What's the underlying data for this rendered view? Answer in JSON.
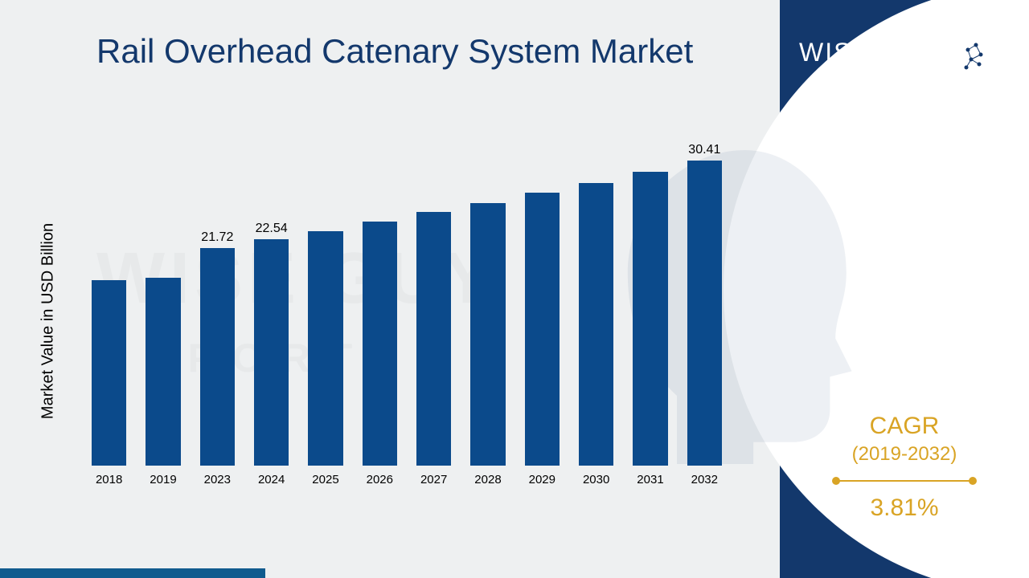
{
  "title": {
    "text": "Rail Overhead Catenary System Market",
    "color": "#13386c",
    "fontsize": 42
  },
  "logo": {
    "brand": "WISE GUY",
    "sub": "REPORTS",
    "text_color": "#ffffff"
  },
  "chart": {
    "type": "bar",
    "ylabel": "Market Value in USD Billion",
    "ylabel_fontsize": 20,
    "categories": [
      "2018",
      "2019",
      "2023",
      "2024",
      "2025",
      "2026",
      "2027",
      "2028",
      "2029",
      "2030",
      "2031",
      "2032"
    ],
    "values": [
      18.5,
      18.7,
      21.72,
      22.54,
      23.4,
      24.3,
      25.3,
      26.2,
      27.2,
      28.2,
      29.3,
      30.41
    ],
    "value_labels": [
      "",
      "",
      "21.72",
      "22.54",
      "",
      "",
      "",
      "",
      "",
      "",
      "",
      "30.41"
    ],
    "bar_color": "#0b4a8b",
    "bar_width_ratio": 0.64,
    "y_max": 32,
    "category_fontsize": 15,
    "value_label_fontsize": 16,
    "value_label_color": "#000000"
  },
  "cagr": {
    "title": "CAGR",
    "range": "(2019-2032)",
    "value": "3.81%",
    "text_color": "#d9a425",
    "line_color": "#d9a425"
  },
  "panel": {
    "bg_color": "#13386c",
    "circle_color": "#ffffff"
  },
  "page_bg": "#eef0f1",
  "bottom_bar_color": "#105b8e"
}
